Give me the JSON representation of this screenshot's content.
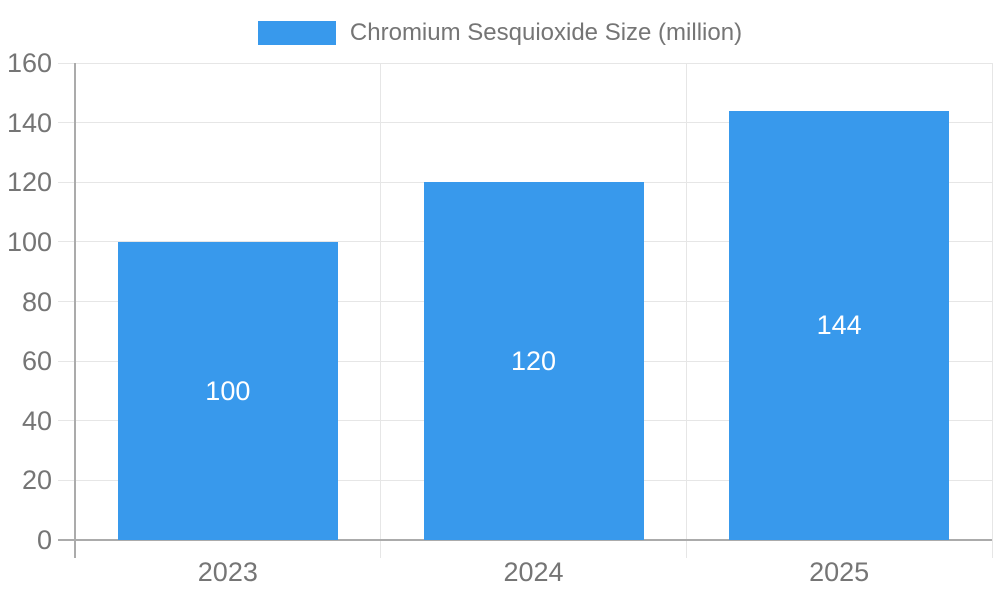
{
  "chart_data": {
    "type": "bar",
    "title": "",
    "legend": {
      "label": "Chromium Sesquioxide Size (million)",
      "position": "top"
    },
    "categories": [
      "2023",
      "2024",
      "2025"
    ],
    "series": [
      {
        "name": "Chromium Sesquioxide Size (million)",
        "values": [
          100,
          120,
          144
        ]
      }
    ],
    "bar_value_labels": [
      "100",
      "120",
      "144"
    ],
    "xlabel": "",
    "ylabel": "",
    "ylim": [
      0,
      160
    ],
    "yticks": [
      0,
      20,
      40,
      60,
      80,
      100,
      120,
      140,
      160
    ],
    "grid": true,
    "colors": {
      "bar": "#3899ec",
      "grid": "#e6e6e6",
      "axis": "#ababab",
      "tick_text": "#757575",
      "bar_label_text": "#ffffff",
      "background": "#ffffff"
    }
  }
}
